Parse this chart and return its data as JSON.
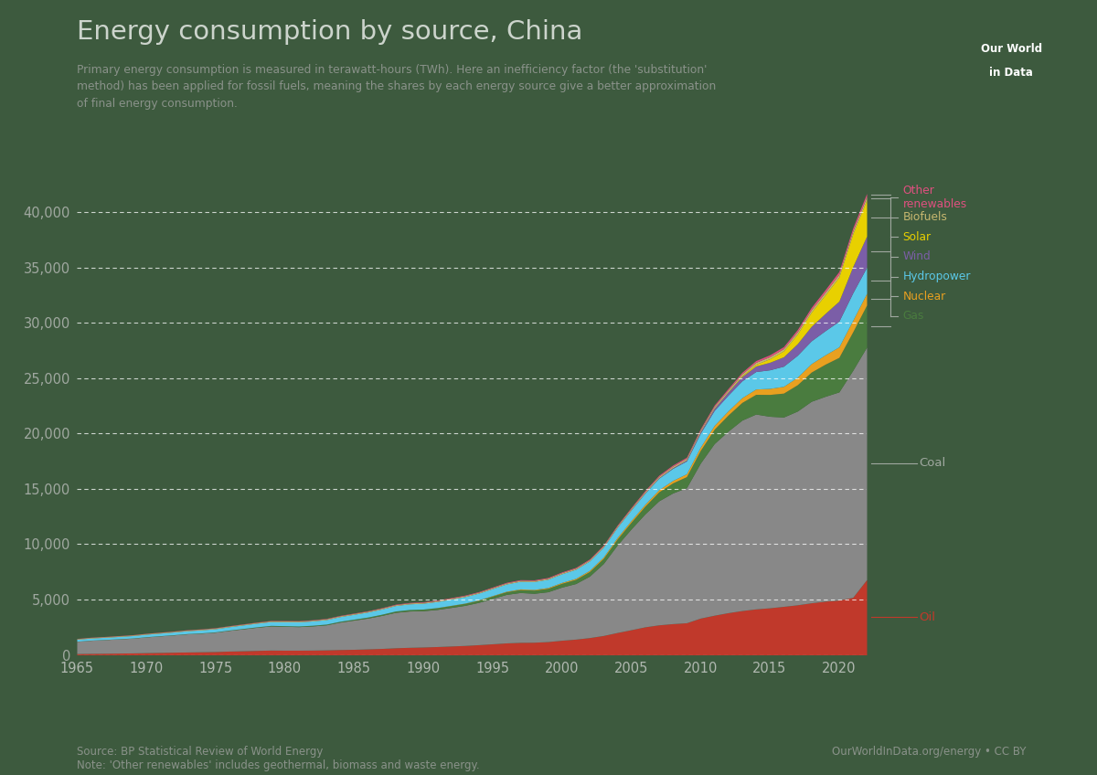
{
  "title": "Energy consumption by source, China",
  "subtitle": "Primary energy consumption is measured in terawatt-hours (TWh). Here an inefficiency factor (the 'substitution'\nmethod) has been applied for fossil fuels, meaning the shares by each energy source give a better approximation\nof final energy consumption.",
  "source_text": "Source: BP Statistical Review of World Energy\nNote: 'Other renewables' includes geothermal, biomass and waste energy.",
  "credit_text": "OurWorldInData.org/energy • CC BY",
  "background_color": "#3d5a3e",
  "title_color": "#d0d8d0",
  "subtitle_color": "#909890",
  "years": [
    1965,
    1966,
    1967,
    1968,
    1969,
    1970,
    1971,
    1972,
    1973,
    1974,
    1975,
    1976,
    1977,
    1978,
    1979,
    1980,
    1981,
    1982,
    1983,
    1984,
    1985,
    1986,
    1987,
    1988,
    1989,
    1990,
    1991,
    1992,
    1993,
    1994,
    1995,
    1996,
    1997,
    1998,
    1999,
    2000,
    2001,
    2002,
    2003,
    2004,
    2005,
    2006,
    2007,
    2008,
    2009,
    2010,
    2011,
    2012,
    2013,
    2014,
    2015,
    2016,
    2017,
    2018,
    2019,
    2020,
    2021,
    2022
  ],
  "oil": [
    120,
    135,
    145,
    160,
    175,
    200,
    220,
    240,
    260,
    280,
    300,
    340,
    370,
    400,
    430,
    420,
    420,
    430,
    450,
    480,
    500,
    540,
    580,
    640,
    680,
    710,
    750,
    800,
    850,
    920,
    1000,
    1080,
    1130,
    1140,
    1200,
    1320,
    1420,
    1560,
    1750,
    2020,
    2270,
    2530,
    2710,
    2820,
    2900,
    3320,
    3580,
    3810,
    4000,
    4150,
    4250,
    4380,
    4520,
    4700,
    4850,
    4950,
    5200,
    6800
  ],
  "coal": [
    1100,
    1180,
    1230,
    1280,
    1330,
    1420,
    1490,
    1560,
    1640,
    1680,
    1750,
    1870,
    1980,
    2090,
    2180,
    2160,
    2130,
    2180,
    2260,
    2480,
    2640,
    2780,
    2980,
    3200,
    3280,
    3280,
    3350,
    3480,
    3620,
    3820,
    4100,
    4380,
    4500,
    4420,
    4500,
    4800,
    5020,
    5550,
    6500,
    7900,
    9100,
    10200,
    11200,
    11800,
    12200,
    14000,
    15500,
    16400,
    17200,
    17600,
    17300,
    17100,
    17500,
    18200,
    18500,
    18800,
    20500,
    21000
  ],
  "gas": [
    10,
    12,
    13,
    14,
    15,
    17,
    18,
    20,
    22,
    24,
    28,
    32,
    37,
    42,
    50,
    55,
    58,
    62,
    68,
    76,
    84,
    95,
    108,
    122,
    135,
    145,
    158,
    168,
    180,
    195,
    215,
    240,
    268,
    285,
    310,
    345,
    380,
    420,
    470,
    540,
    610,
    700,
    810,
    910,
    1000,
    1150,
    1300,
    1450,
    1600,
    1780,
    1970,
    2160,
    2380,
    2640,
    2900,
    3120,
    3480,
    3800
  ],
  "nuclear": [
    0,
    0,
    0,
    0,
    0,
    0,
    0,
    0,
    0,
    0,
    0,
    0,
    0,
    0,
    0,
    0,
    0,
    0,
    0,
    0,
    0,
    0,
    0,
    0,
    0,
    0,
    14,
    21,
    21,
    30,
    40,
    46,
    58,
    62,
    72,
    80,
    90,
    105,
    120,
    138,
    154,
    172,
    196,
    222,
    258,
    296,
    340,
    382,
    430,
    480,
    546,
    612,
    680,
    762,
    844,
    950,
    1040,
    1060
  ],
  "hydropower": [
    180,
    190,
    196,
    205,
    218,
    228,
    238,
    248,
    262,
    274,
    285,
    300,
    315,
    332,
    345,
    360,
    375,
    392,
    405,
    420,
    438,
    454,
    472,
    492,
    510,
    528,
    546,
    566,
    586,
    608,
    632,
    658,
    686,
    716,
    748,
    780,
    814,
    848,
    884,
    920,
    960,
    1000,
    1042,
    1090,
    1160,
    1260,
    1360,
    1420,
    1520,
    1580,
    1680,
    1820,
    1980,
    2060,
    2180,
    2320,
    2480,
    2350
  ],
  "wind": [
    0,
    0,
    0,
    0,
    0,
    0,
    0,
    0,
    0,
    0,
    0,
    0,
    0,
    0,
    0,
    0,
    0,
    0,
    0,
    0,
    0,
    0,
    0,
    0,
    0,
    0,
    0,
    0,
    0,
    0,
    0,
    0,
    0,
    0,
    0,
    2,
    4,
    6,
    10,
    14,
    20,
    30,
    45,
    65,
    90,
    130,
    195,
    275,
    380,
    500,
    680,
    850,
    1050,
    1310,
    1560,
    1810,
    2380,
    2820
  ],
  "solar": [
    0,
    0,
    0,
    0,
    0,
    0,
    0,
    0,
    0,
    0,
    0,
    0,
    0,
    0,
    0,
    0,
    0,
    0,
    0,
    0,
    0,
    0,
    0,
    0,
    0,
    0,
    0,
    0,
    0,
    0,
    0,
    0,
    0,
    0,
    0,
    0,
    0,
    0,
    0,
    0,
    0,
    0,
    1,
    2,
    3,
    8,
    15,
    30,
    80,
    160,
    320,
    540,
    870,
    1280,
    1680,
    2180,
    2950,
    3280
  ],
  "biofuels": [
    50,
    52,
    53,
    54,
    55,
    56,
    57,
    58,
    59,
    60,
    61,
    62,
    63,
    64,
    65,
    66,
    67,
    68,
    69,
    70,
    71,
    72,
    73,
    74,
    75,
    76,
    77,
    78,
    79,
    80,
    82,
    84,
    86,
    88,
    90,
    92,
    95,
    98,
    102,
    106,
    110,
    115,
    120,
    126,
    133,
    140,
    148,
    156,
    165,
    174,
    184,
    195,
    206,
    218,
    232,
    248,
    265,
    280
  ],
  "other_renewables": [
    20,
    21,
    22,
    23,
    24,
    25,
    26,
    27,
    28,
    29,
    30,
    31,
    32,
    33,
    34,
    35,
    36,
    37,
    38,
    39,
    40,
    42,
    44,
    46,
    48,
    50,
    52,
    54,
    56,
    58,
    60,
    62,
    64,
    66,
    68,
    70,
    73,
    76,
    80,
    84,
    88,
    93,
    98,
    104,
    110,
    118,
    126,
    135,
    145,
    156,
    168,
    180,
    195,
    210,
    228,
    248,
    270,
    290
  ],
  "colors": {
    "oil": "#c0392b",
    "coal": "#888888",
    "gas": "#4a7c3f",
    "nuclear": "#e8a020",
    "hydropower": "#5bc8e8",
    "wind": "#7b5ea7",
    "solar": "#e8d000",
    "biofuels": "#c8b870",
    "other_renewables": "#e05080"
  },
  "ylim": [
    0,
    42000
  ],
  "yticks": [
    0,
    5000,
    10000,
    15000,
    20000,
    25000,
    30000,
    35000,
    40000
  ],
  "xlim": [
    1965,
    2022
  ]
}
